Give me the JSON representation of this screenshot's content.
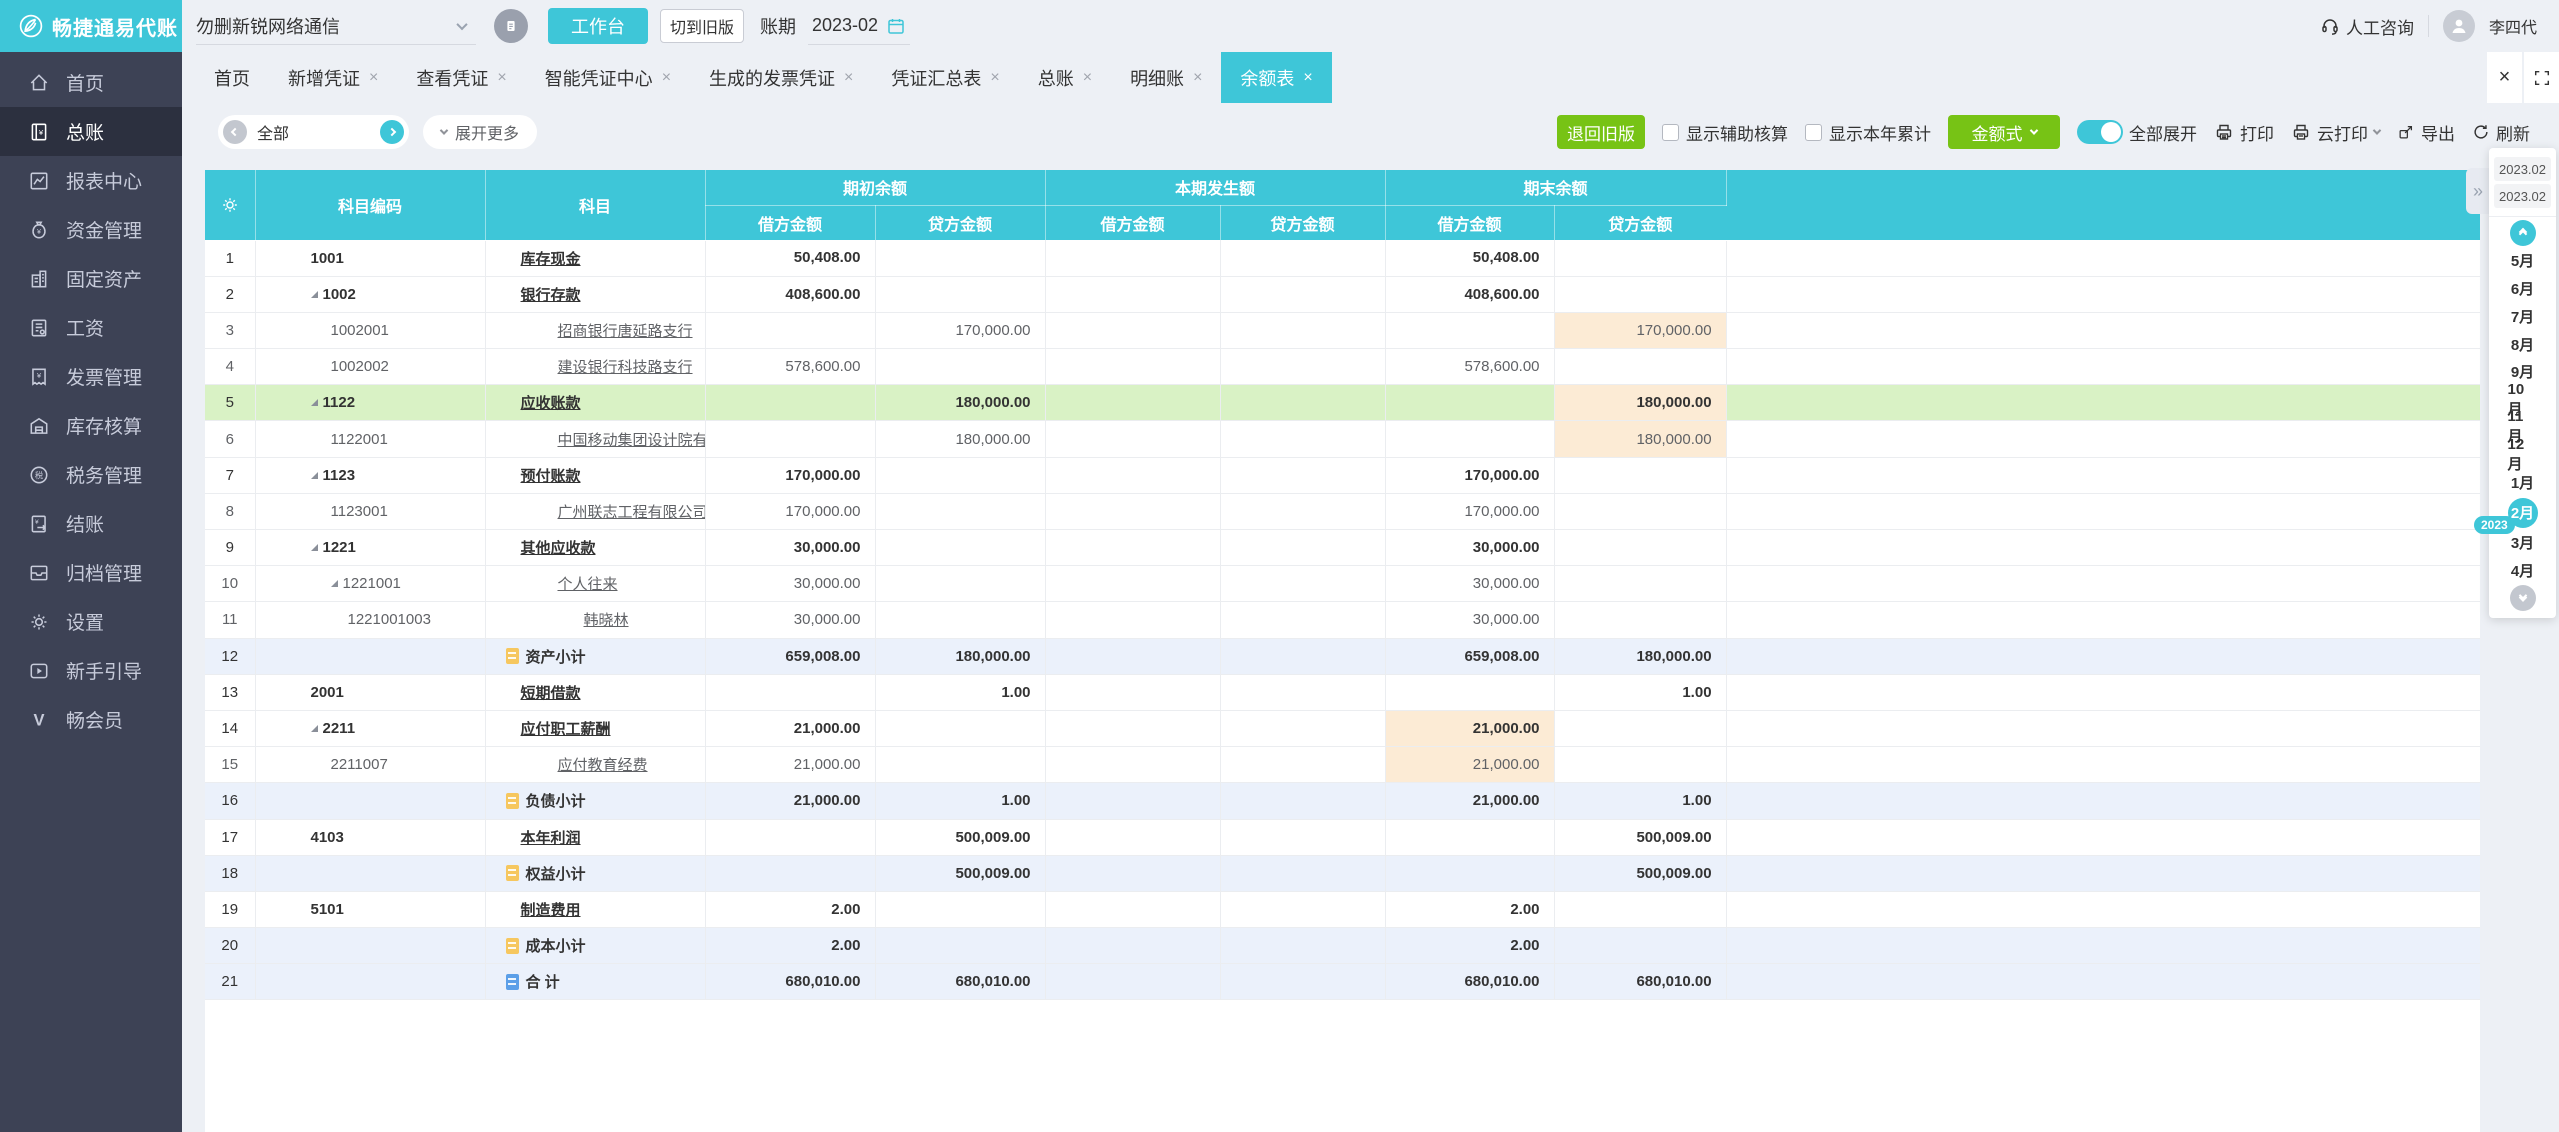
{
  "colors": {
    "brand": "#3EC6D8",
    "green_button": "#77C315",
    "sidebar": "#3D4255",
    "row_selected": "#D9F2C5",
    "row_subtotal": "#EBF1FB",
    "cell_highlight": "#FCEBD5"
  },
  "topbar": {
    "logo_text": "畅捷通易代账",
    "company_selector": "勿删新锐网络通信",
    "workbench_button": "工作台",
    "switch_old_button": "切到旧版",
    "period_label": "账期",
    "period_value": "2023-02",
    "support_label": "人工咨询",
    "user_name": "李四代"
  },
  "sidebar": {
    "items": [
      {
        "label": "首页",
        "icon": "home-icon",
        "active": false
      },
      {
        "label": "总账",
        "icon": "ledger-icon",
        "active": true
      },
      {
        "label": "报表中心",
        "icon": "report-icon",
        "active": false
      },
      {
        "label": "资金管理",
        "icon": "money-bag-icon",
        "active": false
      },
      {
        "label": "固定资产",
        "icon": "building-icon",
        "active": false
      },
      {
        "label": "工资",
        "icon": "salary-icon",
        "active": false
      },
      {
        "label": "发票管理",
        "icon": "invoice-icon",
        "active": false
      },
      {
        "label": "库存核算",
        "icon": "warehouse-icon",
        "active": false
      },
      {
        "label": "税务管理",
        "icon": "tax-icon",
        "active": false
      },
      {
        "label": "结账",
        "icon": "closing-icon",
        "active": false
      },
      {
        "label": "归档管理",
        "icon": "archive-icon",
        "active": false
      },
      {
        "label": "设置",
        "icon": "gear-icon",
        "active": false
      },
      {
        "label": "新手引导",
        "icon": "guide-icon",
        "active": false
      },
      {
        "label": "畅会员",
        "icon": "member-icon",
        "active": false
      }
    ]
  },
  "tabs": [
    {
      "label": "首页",
      "closable": false,
      "active": false
    },
    {
      "label": "新增凭证",
      "closable": true,
      "active": false
    },
    {
      "label": "查看凭证",
      "closable": true,
      "active": false
    },
    {
      "label": "智能凭证中心",
      "closable": true,
      "active": false
    },
    {
      "label": "生成的发票凭证",
      "closable": true,
      "active": false
    },
    {
      "label": "凭证汇总表",
      "closable": true,
      "active": false
    },
    {
      "label": "总账",
      "closable": true,
      "active": false
    },
    {
      "label": "明细账",
      "closable": true,
      "active": false
    },
    {
      "label": "余额表",
      "closable": true,
      "active": true
    }
  ],
  "toolbar": {
    "scope_value": "全部",
    "expand_more_label": "展开更多",
    "back_old_label": "退回旧版",
    "checkbox_aux_label": "显示辅助核算",
    "checkbox_ytd_label": "显示本年累计",
    "amount_style_label": "金额式",
    "expand_all_label": "全部展开",
    "print_label": "打印",
    "cloud_print_label": "云打印",
    "export_label": "导出",
    "refresh_label": "刷新"
  },
  "table": {
    "col_code": "科目编码",
    "col_subject": "科目",
    "group_opening": "期初余额",
    "group_current": "本期发生额",
    "group_ending": "期末余额",
    "debit_label": "借方金额",
    "credit_label": "贷方金额",
    "rows": [
      {
        "num": "1",
        "code": "1001",
        "tri": false,
        "level": 1,
        "name": "库存现金",
        "type": "account",
        "bold": true,
        "selected": false,
        "v": [
          "50,408.00",
          "",
          "",
          "",
          "50,408.00",
          ""
        ],
        "orange": []
      },
      {
        "num": "2",
        "code": "1002",
        "tri": true,
        "level": 1,
        "name": "银行存款",
        "type": "account",
        "bold": true,
        "selected": false,
        "v": [
          "408,600.00",
          "",
          "",
          "",
          "408,600.00",
          ""
        ],
        "orange": []
      },
      {
        "num": "3",
        "code": "1002001",
        "tri": false,
        "level": 2,
        "name": "招商银行唐延路支行",
        "type": "account",
        "bold": false,
        "selected": false,
        "v": [
          "",
          "170,000.00",
          "",
          "",
          "",
          "170,000.00"
        ],
        "orange": [
          5
        ]
      },
      {
        "num": "4",
        "code": "1002002",
        "tri": false,
        "level": 2,
        "name": "建设银行科技路支行",
        "type": "account",
        "bold": false,
        "selected": false,
        "v": [
          "578,600.00",
          "",
          "",
          "",
          "578,600.00",
          ""
        ],
        "orange": []
      },
      {
        "num": "5",
        "code": "1122",
        "tri": true,
        "level": 1,
        "name": "应收账款",
        "type": "account",
        "bold": true,
        "selected": true,
        "v": [
          "",
          "180,000.00",
          "",
          "",
          "",
          "180,000.00"
        ],
        "orange": [
          5
        ]
      },
      {
        "num": "6",
        "code": "1122001",
        "tri": false,
        "level": 2,
        "name": "中国移动集团设计院有限公司陕",
        "type": "account",
        "bold": false,
        "selected": false,
        "v": [
          "",
          "180,000.00",
          "",
          "",
          "",
          "180,000.00"
        ],
        "orange": [
          5
        ]
      },
      {
        "num": "7",
        "code": "1123",
        "tri": true,
        "level": 1,
        "name": "预付账款",
        "type": "account",
        "bold": true,
        "selected": false,
        "v": [
          "170,000.00",
          "",
          "",
          "",
          "170,000.00",
          ""
        ],
        "orange": []
      },
      {
        "num": "8",
        "code": "1123001",
        "tri": false,
        "level": 2,
        "name": "广州联志工程有限公司",
        "type": "account",
        "bold": false,
        "selected": false,
        "v": [
          "170,000.00",
          "",
          "",
          "",
          "170,000.00",
          ""
        ],
        "orange": []
      },
      {
        "num": "9",
        "code": "1221",
        "tri": true,
        "level": 1,
        "name": "其他应收款",
        "type": "account",
        "bold": true,
        "selected": false,
        "v": [
          "30,000.00",
          "",
          "",
          "",
          "30,000.00",
          ""
        ],
        "orange": []
      },
      {
        "num": "10",
        "code": "1221001",
        "tri": true,
        "level": 2,
        "name": "个人往来",
        "type": "account",
        "bold": false,
        "selected": false,
        "v": [
          "30,000.00",
          "",
          "",
          "",
          "30,000.00",
          ""
        ],
        "orange": []
      },
      {
        "num": "11",
        "code": "1221001003",
        "tri": false,
        "level": 3,
        "name": "韩晓林",
        "type": "account",
        "bold": false,
        "selected": false,
        "v": [
          "30,000.00",
          "",
          "",
          "",
          "30,000.00",
          ""
        ],
        "orange": []
      },
      {
        "num": "12",
        "code": "",
        "tri": false,
        "level": 0,
        "name": "资产小计",
        "type": "subtotal",
        "bold": true,
        "selected": false,
        "v": [
          "659,008.00",
          "180,000.00",
          "",
          "",
          "659,008.00",
          "180,000.00"
        ],
        "orange": []
      },
      {
        "num": "13",
        "code": "2001",
        "tri": false,
        "level": 1,
        "name": "短期借款",
        "type": "account",
        "bold": true,
        "selected": false,
        "v": [
          "",
          "1.00",
          "",
          "",
          "",
          "1.00"
        ],
        "orange": []
      },
      {
        "num": "14",
        "code": "2211",
        "tri": true,
        "level": 1,
        "name": "应付职工薪酬",
        "type": "account",
        "bold": true,
        "selected": false,
        "v": [
          "21,000.00",
          "",
          "",
          "",
          "21,000.00",
          ""
        ],
        "orange": [
          4
        ]
      },
      {
        "num": "15",
        "code": "2211007",
        "tri": false,
        "level": 2,
        "name": "应付教育经费",
        "type": "account",
        "bold": false,
        "selected": false,
        "v": [
          "21,000.00",
          "",
          "",
          "",
          "21,000.00",
          ""
        ],
        "orange": [
          4
        ]
      },
      {
        "num": "16",
        "code": "",
        "tri": false,
        "level": 0,
        "name": "负债小计",
        "type": "subtotal",
        "bold": true,
        "selected": false,
        "v": [
          "21,000.00",
          "1.00",
          "",
          "",
          "21,000.00",
          "1.00"
        ],
        "orange": []
      },
      {
        "num": "17",
        "code": "4103",
        "tri": false,
        "level": 1,
        "name": "本年利润",
        "type": "account",
        "bold": true,
        "selected": false,
        "v": [
          "",
          "500,009.00",
          "",
          "",
          "",
          "500,009.00"
        ],
        "orange": []
      },
      {
        "num": "18",
        "code": "",
        "tri": false,
        "level": 0,
        "name": "权益小计",
        "type": "subtotal",
        "bold": true,
        "selected": false,
        "v": [
          "",
          "500,009.00",
          "",
          "",
          "",
          "500,009.00"
        ],
        "orange": []
      },
      {
        "num": "19",
        "code": "5101",
        "tri": false,
        "level": 1,
        "name": "制造费用",
        "type": "account",
        "bold": true,
        "selected": false,
        "v": [
          "2.00",
          "",
          "",
          "",
          "2.00",
          ""
        ],
        "orange": []
      },
      {
        "num": "20",
        "code": "",
        "tri": false,
        "level": 0,
        "name": "成本小计",
        "type": "subtotal",
        "bold": true,
        "selected": false,
        "v": [
          "2.00",
          "",
          "",
          "",
          "2.00",
          ""
        ],
        "orange": []
      },
      {
        "num": "21",
        "code": "",
        "tri": false,
        "level": 0,
        "name": "合  计",
        "type": "total",
        "bold": true,
        "selected": false,
        "v": [
          "680,010.00",
          "680,010.00",
          "",
          "",
          "680,010.00",
          "680,010.00"
        ],
        "orange": []
      }
    ]
  },
  "period_panel": {
    "current": "2023.02",
    "selected": "2023.02",
    "year_badge": "2023",
    "months": [
      "5月",
      "6月",
      "7月",
      "8月",
      "9月",
      "10月",
      "11月",
      "12月",
      "1月",
      "2月",
      "3月",
      "4月"
    ],
    "active_month": "2月"
  }
}
